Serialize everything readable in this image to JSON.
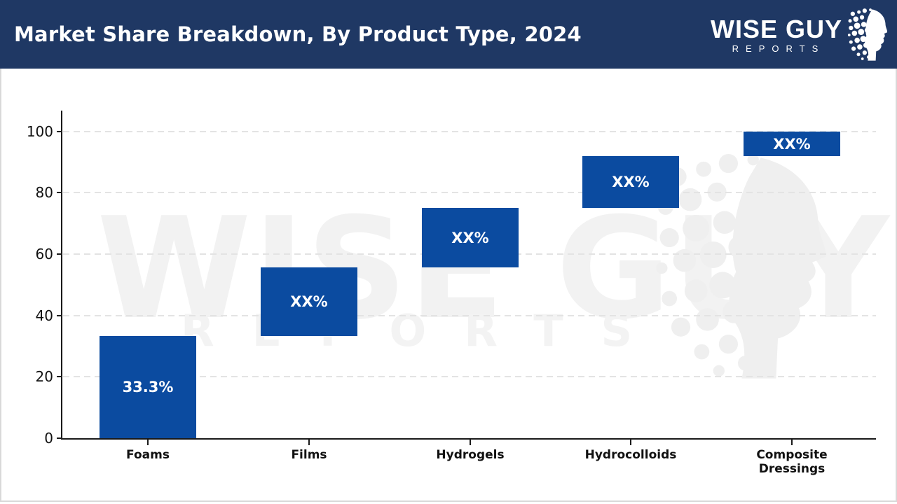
{
  "header": {
    "title": "Market Share Breakdown, By Product Type, 2024",
    "background_color": "#1F3864"
  },
  "logo": {
    "wordmark": "WISE GUY",
    "tagline": "REPORTS",
    "head_icon": "dotted-head-profile"
  },
  "watermark": {
    "wordmark": "WISE GUY",
    "tagline": "REPORTS"
  },
  "chart_data": {
    "type": "bar",
    "subtype": "waterfall-floating-bars",
    "title": "Market Share Breakdown, By Product Type, 2024",
    "categories": [
      "Foams",
      "Films",
      "Hydrogels",
      "Hydrocolloids",
      "Composite Dressings"
    ],
    "segments": [
      {
        "category": "Foams",
        "from": 0,
        "to": 33.3,
        "label": "33.3%"
      },
      {
        "category": "Films",
        "from": 33.3,
        "to": 55.6,
        "label": "XX%"
      },
      {
        "category": "Hydrogels",
        "from": 55.6,
        "to": 75.0,
        "label": "XX%"
      },
      {
        "category": "Hydrocolloids",
        "from": 75.0,
        "to": 91.9,
        "label": "XX%"
      },
      {
        "category": "Composite Dressings",
        "from": 91.9,
        "to": 100.0,
        "label": "XX%"
      }
    ],
    "xlabel": "",
    "ylabel": "",
    "yticks": [
      0,
      20,
      40,
      60,
      80,
      100
    ],
    "ylim": [
      0,
      107
    ],
    "grid": "horizontal-dashed",
    "legend": "none",
    "bar_color": "#0B4BA0",
    "bar_label_color": "#FFFFFF",
    "axis_color": "#1a1a1a"
  }
}
